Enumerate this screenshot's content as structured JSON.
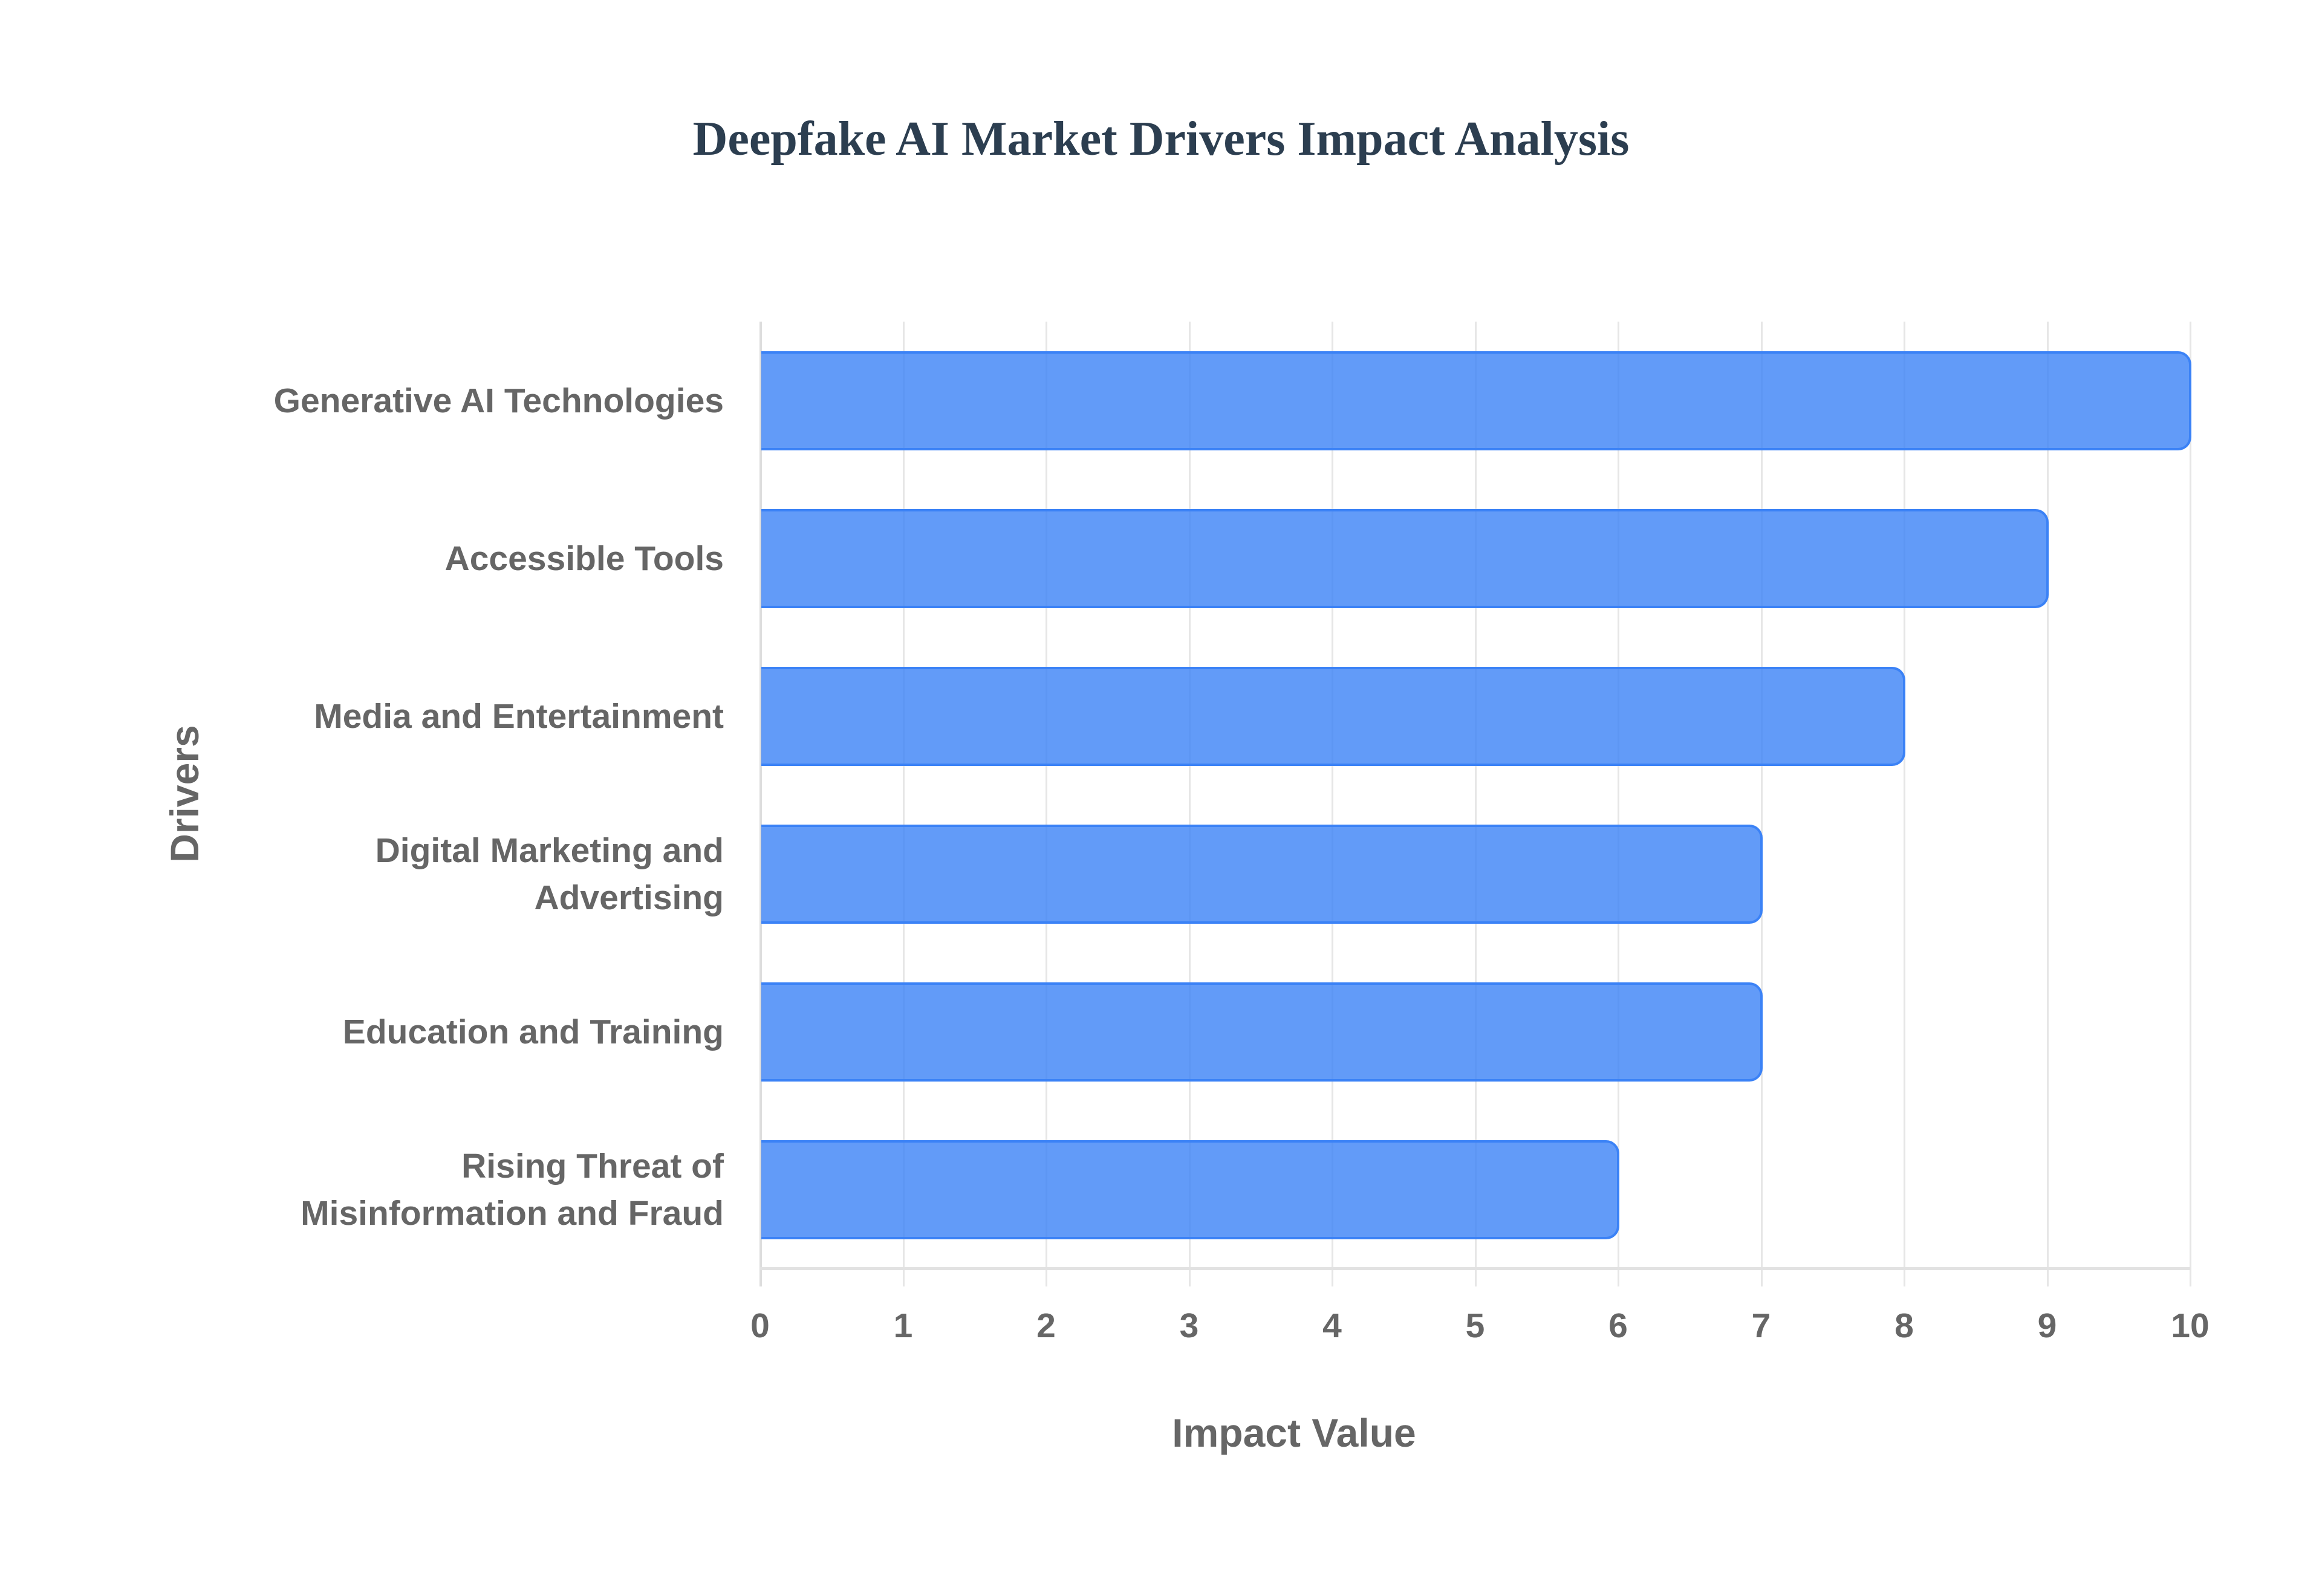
{
  "chart_data": {
    "type": "bar",
    "orientation": "horizontal",
    "title": "Deepfake AI Market Drivers Impact Analysis",
    "xlabel": "Impact Value",
    "ylabel": "Drivers",
    "categories": [
      "Generative AI Technologies",
      "Accessible Tools",
      "Media and Entertainment",
      "Digital Marketing and Advertising",
      "Education and Training",
      "Rising Threat of Misinformation and Fraud"
    ],
    "values": [
      10,
      9,
      8,
      7,
      7,
      6
    ],
    "xlim": [
      0,
      10
    ],
    "xticks": [
      "0",
      "1",
      "2",
      "3",
      "4",
      "5",
      "6",
      "7",
      "8",
      "9",
      "10"
    ],
    "grid": true,
    "legend": null,
    "colors": {
      "bar_fill": "rgba(59,130,246,0.8)",
      "bar_border": "#3b82f6",
      "title": "#2c3e50",
      "axis_text": "#666666",
      "grid": "#e6e6e6"
    }
  },
  "labels": {
    "title": "Deepfake AI Market Drivers Impact Analysis",
    "x_axis_title": "Impact Value",
    "y_axis_title": "Drivers",
    "y_ticks": [
      [
        "Generative AI Technologies"
      ],
      [
        "Accessible Tools"
      ],
      [
        "Media and Entertainment"
      ],
      [
        "Digital Marketing and",
        "Advertising"
      ],
      [
        "Education and Training"
      ],
      [
        "Rising Threat of",
        "Misinformation and Fraud"
      ]
    ],
    "x_ticks": [
      "0",
      "1",
      "2",
      "3",
      "4",
      "5",
      "6",
      "7",
      "8",
      "9",
      "10"
    ]
  }
}
